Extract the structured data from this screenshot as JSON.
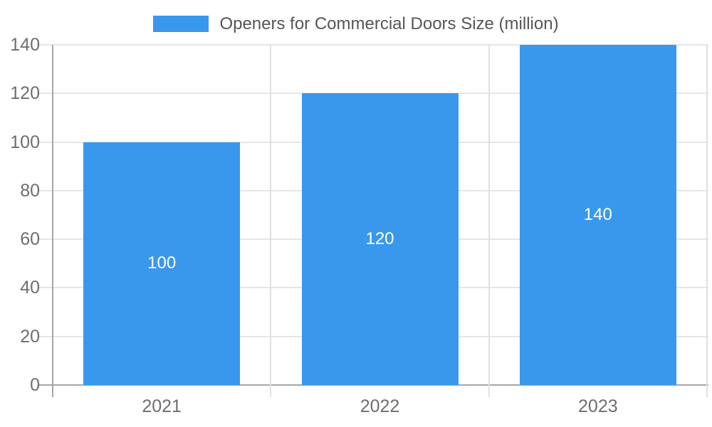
{
  "chart_data": {
    "type": "bar",
    "title": "",
    "legend": {
      "position": "top",
      "label": "Openers for Commercial Doors Size (million)"
    },
    "categories": [
      "2021",
      "2022",
      "2023"
    ],
    "series": [
      {
        "name": "Openers for Commercial Doors Size (million)",
        "values": [
          100,
          120,
          140
        ]
      }
    ],
    "bar_value_labels": [
      "100",
      "120",
      "140"
    ],
    "yticks": [
      "0",
      "20",
      "40",
      "60",
      "80",
      "100",
      "120",
      "140"
    ],
    "ytick_values": [
      0,
      20,
      40,
      60,
      80,
      100,
      120,
      140
    ],
    "ylim": [
      0,
      140
    ],
    "xlabel": "",
    "ylabel": "",
    "grid": "on",
    "legend_position": "top-center",
    "colors": {
      "bar": "#3998ec",
      "bar_label_text": "#ffffff",
      "axis_label_text": "#6e6e6e",
      "legend_text": "#565656",
      "gridline": "#e6e6e6",
      "axis_line": "#a6a6a6",
      "separator_line": "#e0e0e0",
      "background": "#ffffff"
    }
  }
}
